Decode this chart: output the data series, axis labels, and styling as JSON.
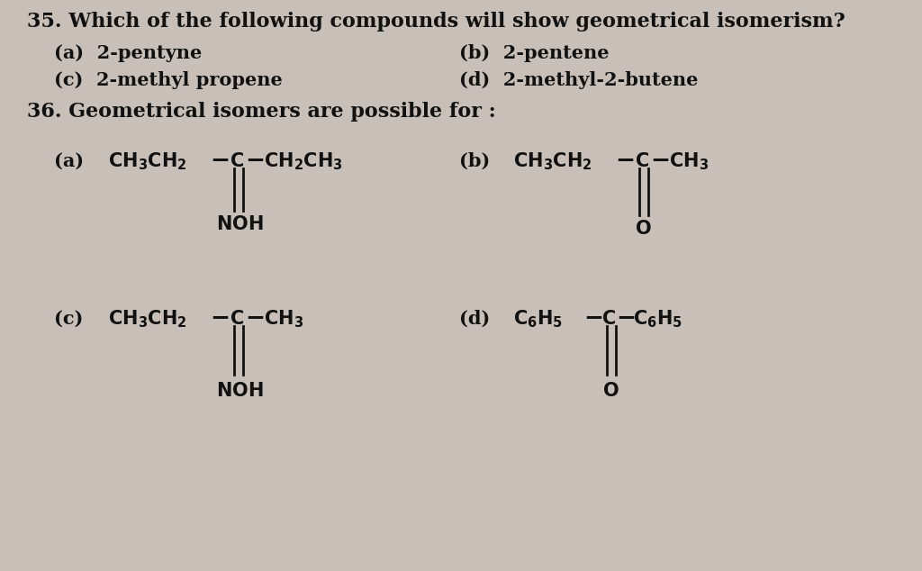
{
  "bg_color": "#c8c0b8",
  "text_color": "#111111",
  "font_family": "DejaVu Serif",
  "font_size_title": 16,
  "font_size_options": 15,
  "font_size_struct": 15,
  "q35_title": "35. Which of the following compounds will show geometrical isomerism?",
  "q35_a": "(a)  2-pentyne",
  "q35_b": "(b)  2-pentene",
  "q35_c": "(c)  2-methyl propene",
  "q35_d": "(d)  2-methyl-2-butene",
  "q36_title": "36. Geometrical isomers are possible for :"
}
